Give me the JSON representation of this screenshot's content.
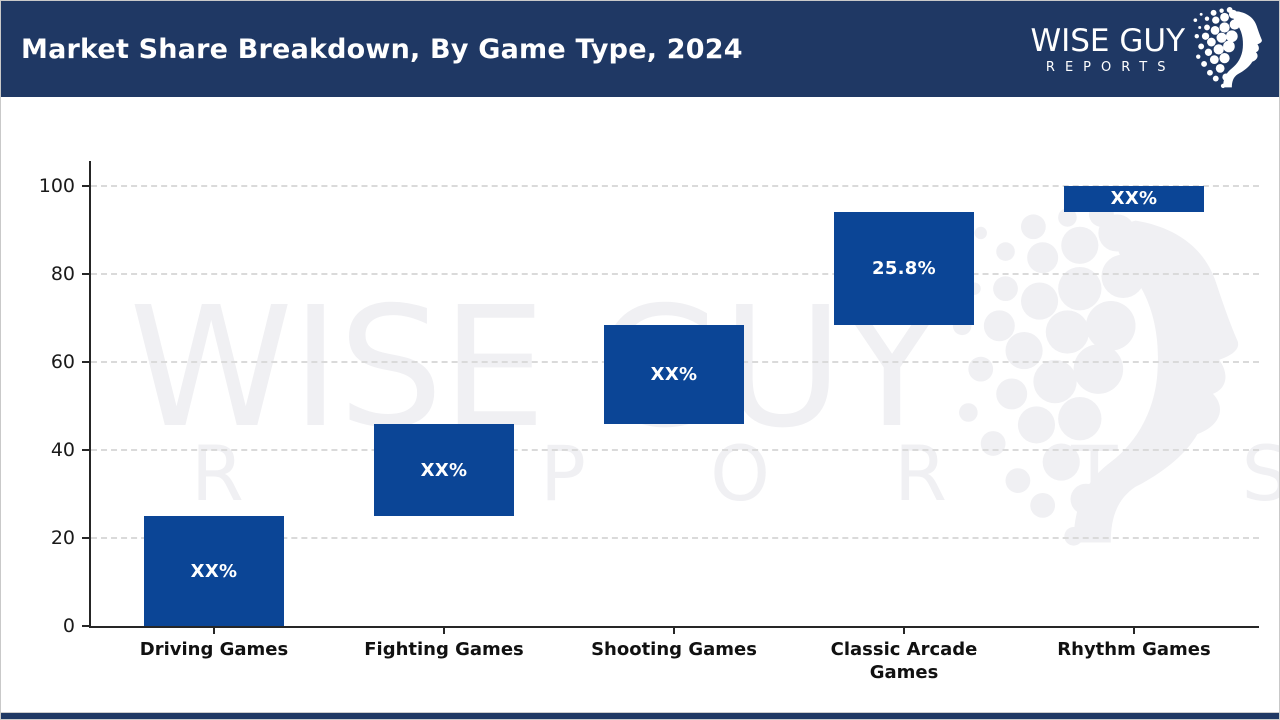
{
  "header": {
    "title": "Market Share Breakdown, By Game Type, 2024",
    "bg_color": "#1f3864",
    "logo": {
      "primary": "WISE GUY",
      "secondary": "REPORTS"
    }
  },
  "chart_data": {
    "type": "bar",
    "variant": "floating-waterfall",
    "title": "Market Share Breakdown, By Game Type, 2024",
    "xlabel": "",
    "ylabel": "",
    "categories": [
      "Driving Games",
      "Fighting Games",
      "Shooting Games",
      "Classic Arcade Games",
      "Rhythm Games"
    ],
    "segments": [
      {
        "category": "Driving Games",
        "start": 0,
        "end": 25.0,
        "label": "XX%"
      },
      {
        "category": "Fighting Games",
        "start": 25.0,
        "end": 45.8,
        "label": "XX%"
      },
      {
        "category": "Shooting Games",
        "start": 45.8,
        "end": 68.3,
        "label": "XX%"
      },
      {
        "category": "Classic Arcade Games",
        "start": 68.3,
        "end": 94.1,
        "label": "25.8%"
      },
      {
        "category": "Rhythm Games",
        "start": 94.1,
        "end": 100.0,
        "label": "XX%"
      }
    ],
    "yticks": [
      0,
      20,
      40,
      60,
      80,
      100
    ],
    "ylim": [
      0,
      106
    ],
    "grid": "horizontal-dashed",
    "legend": "none",
    "bar_color": "#0b4596",
    "bar_label_color": "#ffffff",
    "gridline_color": "#dadada",
    "axis_color": "#262626",
    "watermark": {
      "primary": "WISE GUY",
      "secondary": "R E P O R T S"
    }
  }
}
